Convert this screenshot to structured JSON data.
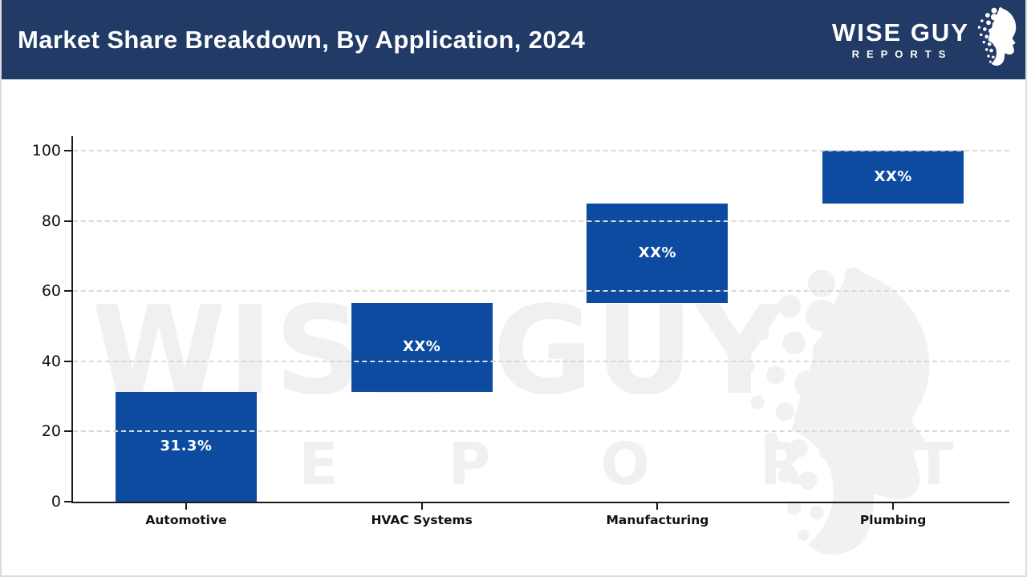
{
  "header": {
    "title": "Market Share Breakdown, By Application, 2024"
  },
  "logo": {
    "line1": "WISE GUY",
    "line2": "REPORTS"
  },
  "watermark": {
    "line1": "WISE GUY",
    "line2": "R E P O R T S"
  },
  "colors": {
    "header_bg": "#213a66",
    "bar": "#0d4ba0",
    "grid": "#d9d9d9",
    "axis": "#1a1a1a",
    "watermark": "#f0f0f2",
    "bar_label_text": "#ffffff"
  },
  "chart_data": {
    "type": "bar",
    "subtype": "waterfall",
    "title": "Market Share Breakdown, By Application, 2024",
    "categories": [
      "Automotive",
      "HVAC Systems",
      "Manufacturing",
      "Plumbing"
    ],
    "segments": [
      {
        "category": "Automotive",
        "start": 0,
        "end": 31.3,
        "label": "31.3%"
      },
      {
        "category": "HVAC Systems",
        "start": 31.3,
        "end": 56.6,
        "label": "XX%"
      },
      {
        "category": "Manufacturing",
        "start": 56.6,
        "end": 84.9,
        "label": "XX%"
      },
      {
        "category": "Plumbing",
        "start": 84.9,
        "end": 100,
        "label": "XX%"
      }
    ],
    "xlabel": "",
    "ylabel": "",
    "yticks": [
      0,
      20,
      40,
      60,
      80,
      100
    ],
    "ylim": [
      0,
      104
    ],
    "grid": "dashed-horizontal",
    "legend": "none"
  }
}
